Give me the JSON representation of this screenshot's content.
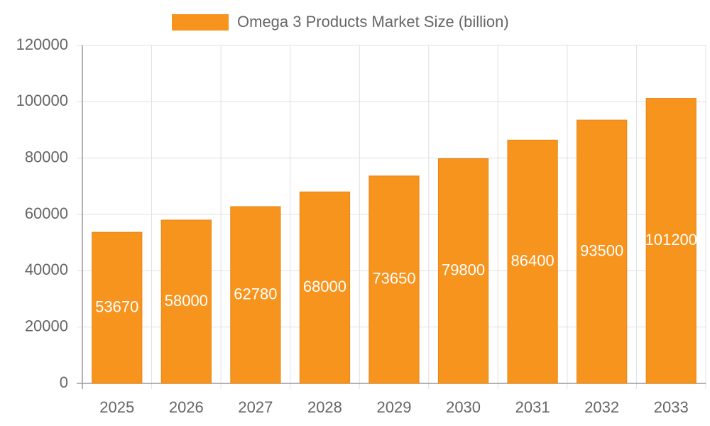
{
  "chart_data": {
    "type": "bar",
    "categories": [
      "2025",
      "2026",
      "2027",
      "2028",
      "2029",
      "2030",
      "2031",
      "2032",
      "2033"
    ],
    "series": [
      {
        "name": "Omega 3 Products Market Size (billion)",
        "color": "#f7941d",
        "values": [
          53670,
          58000,
          62780,
          68000,
          73650,
          79800,
          86400,
          93500,
          101200
        ]
      }
    ],
    "ylim": [
      0,
      120000
    ],
    "yticks": [
      0,
      20000,
      40000,
      60000,
      80000,
      100000,
      120000
    ],
    "grid": true,
    "legend": "top",
    "data_labels": true
  }
}
